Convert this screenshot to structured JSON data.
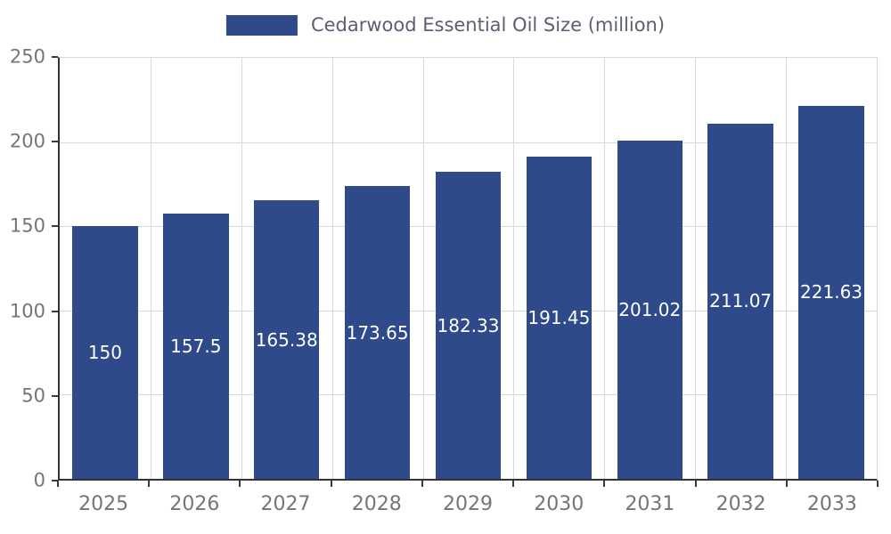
{
  "legend": {
    "label": "Cedarwood Essential Oil Size (million)",
    "swatch_color": "#2e4a8b"
  },
  "chart_data": {
    "type": "bar",
    "title": "Cedarwood Essential Oil Size (million)",
    "categories": [
      "2025",
      "2026",
      "2027",
      "2028",
      "2029",
      "2030",
      "2031",
      "2032",
      "2033"
    ],
    "values": [
      150,
      157.5,
      165.38,
      173.65,
      182.33,
      191.45,
      201.02,
      211.07,
      221.63
    ],
    "value_labels": [
      "150",
      "157.5",
      "165.38",
      "173.65",
      "182.33",
      "191.45",
      "201.02",
      "211.07",
      "221.63"
    ],
    "xlabel": "",
    "ylabel": "",
    "ylim": [
      0,
      250
    ],
    "yticks": [
      0,
      50,
      100,
      150,
      200,
      250
    ],
    "grid": true,
    "legend_position": "top",
    "bar_color": "#2e4a8b",
    "bar_label_color": "#ffffff",
    "axis_text_color": "#757575"
  }
}
